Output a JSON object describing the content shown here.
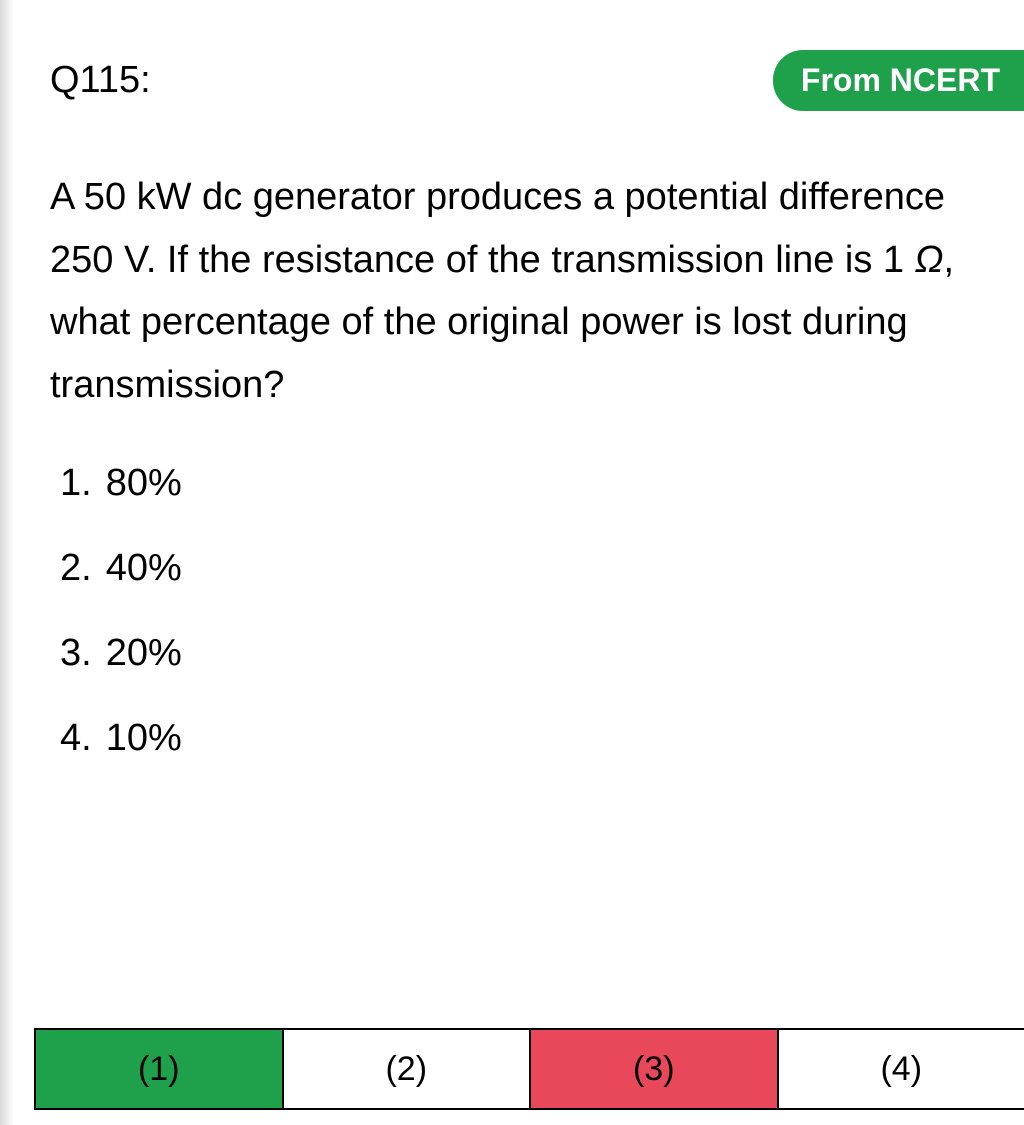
{
  "header": {
    "question_number": "Q115:",
    "badge_label": "From NCERT"
  },
  "question": {
    "text_line1": "A 50 kW dc generator produces a potential difference",
    "text_line2_part1": "250 V. If the resistance of the transmission line is 1 ",
    "text_line2_omega": "Ω",
    "text_line2_part2": ",",
    "text_line3": "what percentage of the original power is lost during",
    "text_line4": "transmission?"
  },
  "options": [
    {
      "number": "1.",
      "text": "80%"
    },
    {
      "number": "2.",
      "text": "40%"
    },
    {
      "number": "3.",
      "text": "20%"
    },
    {
      "number": "4.",
      "text": "10%"
    }
  ],
  "answer_buttons": [
    {
      "label": "(1)",
      "bg_color": "#1fa04a",
      "state": "green"
    },
    {
      "label": "(2)",
      "bg_color": "#ffffff",
      "state": "white"
    },
    {
      "label": "(3)",
      "bg_color": "#e84859",
      "state": "red"
    },
    {
      "label": "(4)",
      "bg_color": "#ffffff",
      "state": "white"
    }
  ],
  "colors": {
    "badge_bg": "#1fa04a",
    "badge_text": "#ffffff",
    "text_color": "#000000",
    "green_button": "#1fa04a",
    "red_button": "#e84859",
    "white_button": "#ffffff",
    "border_color": "#000000"
  },
  "typography": {
    "question_number_fontsize": 38,
    "badge_fontsize": 32,
    "question_text_fontsize": 38,
    "option_fontsize": 38,
    "answer_button_fontsize": 34
  }
}
